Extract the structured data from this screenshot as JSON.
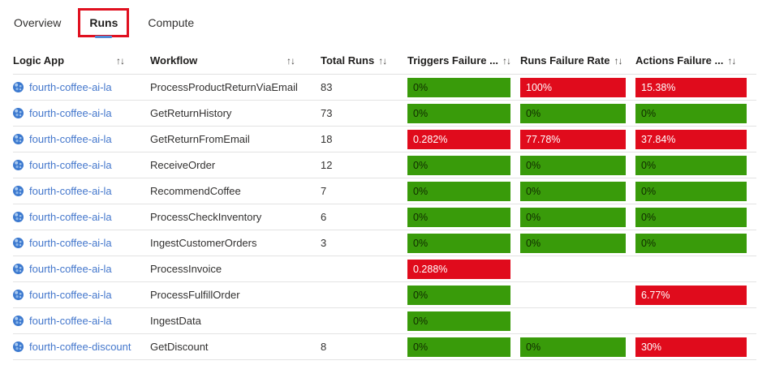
{
  "tabs": [
    {
      "label": "Overview",
      "selected": false
    },
    {
      "label": "Runs",
      "selected": true,
      "annotated": true
    },
    {
      "label": "Compute",
      "selected": false
    }
  ],
  "annotation_color": "#e0101f",
  "tab_underline_color": "#5089d5",
  "table": {
    "sort_icon": "↑↓",
    "columns": [
      {
        "label": "Logic App",
        "key": "logic-app"
      },
      {
        "label": "Workflow",
        "key": "workflow"
      },
      {
        "label": "Total Runs",
        "key": "total-runs"
      },
      {
        "label": "Triggers Failure ...",
        "key": "triggers-failure"
      },
      {
        "label": "Runs Failure Rate",
        "key": "runs-failure-rate"
      },
      {
        "label": "Actions Failure ...",
        "key": "actions-failure"
      }
    ],
    "status_colors": {
      "green": "#399b0a",
      "red": "#e00b1c"
    },
    "rows": [
      {
        "logic_app": "fourth-coffee-ai-la",
        "workflow": "ProcessProductReturnViaEmail",
        "total_runs": "83",
        "triggers": {
          "value": "0%",
          "status": "green"
        },
        "runs": {
          "value": "100%",
          "status": "red"
        },
        "actions": {
          "value": "15.38%",
          "status": "red"
        }
      },
      {
        "logic_app": "fourth-coffee-ai-la",
        "workflow": "GetReturnHistory",
        "total_runs": "73",
        "triggers": {
          "value": "0%",
          "status": "green"
        },
        "runs": {
          "value": "0%",
          "status": "green"
        },
        "actions": {
          "value": "0%",
          "status": "green"
        }
      },
      {
        "logic_app": "fourth-coffee-ai-la",
        "workflow": "GetReturnFromEmail",
        "total_runs": "18",
        "triggers": {
          "value": "0.282%",
          "status": "red"
        },
        "runs": {
          "value": "77.78%",
          "status": "red"
        },
        "actions": {
          "value": "37.84%",
          "status": "red"
        }
      },
      {
        "logic_app": "fourth-coffee-ai-la",
        "workflow": "ReceiveOrder",
        "total_runs": "12",
        "triggers": {
          "value": "0%",
          "status": "green"
        },
        "runs": {
          "value": "0%",
          "status": "green"
        },
        "actions": {
          "value": "0%",
          "status": "green"
        }
      },
      {
        "logic_app": "fourth-coffee-ai-la",
        "workflow": "RecommendCoffee",
        "total_runs": "7",
        "triggers": {
          "value": "0%",
          "status": "green"
        },
        "runs": {
          "value": "0%",
          "status": "green"
        },
        "actions": {
          "value": "0%",
          "status": "green"
        }
      },
      {
        "logic_app": "fourth-coffee-ai-la",
        "workflow": "ProcessCheckInventory",
        "total_runs": "6",
        "triggers": {
          "value": "0%",
          "status": "green"
        },
        "runs": {
          "value": "0%",
          "status": "green"
        },
        "actions": {
          "value": "0%",
          "status": "green"
        }
      },
      {
        "logic_app": "fourth-coffee-ai-la",
        "workflow": "IngestCustomerOrders",
        "total_runs": "3",
        "triggers": {
          "value": "0%",
          "status": "green"
        },
        "runs": {
          "value": "0%",
          "status": "green"
        },
        "actions": {
          "value": "0%",
          "status": "green"
        }
      },
      {
        "logic_app": "fourth-coffee-ai-la",
        "workflow": "ProcessInvoice",
        "total_runs": "",
        "triggers": {
          "value": "0.288%",
          "status": "red"
        },
        "runs": null,
        "actions": null
      },
      {
        "logic_app": "fourth-coffee-ai-la",
        "workflow": "ProcessFulfillOrder",
        "total_runs": "",
        "triggers": {
          "value": "0%",
          "status": "green"
        },
        "runs": null,
        "actions": {
          "value": "6.77%",
          "status": "red"
        }
      },
      {
        "logic_app": "fourth-coffee-ai-la",
        "workflow": "IngestData",
        "total_runs": "",
        "triggers": {
          "value": "0%",
          "status": "green"
        },
        "runs": null,
        "actions": null
      },
      {
        "logic_app": "fourth-coffee-discount",
        "workflow": "GetDiscount",
        "total_runs": "8",
        "triggers": {
          "value": "0%",
          "status": "green"
        },
        "runs": {
          "value": "0%",
          "status": "green"
        },
        "actions": {
          "value": "30%",
          "status": "red"
        }
      }
    ]
  }
}
